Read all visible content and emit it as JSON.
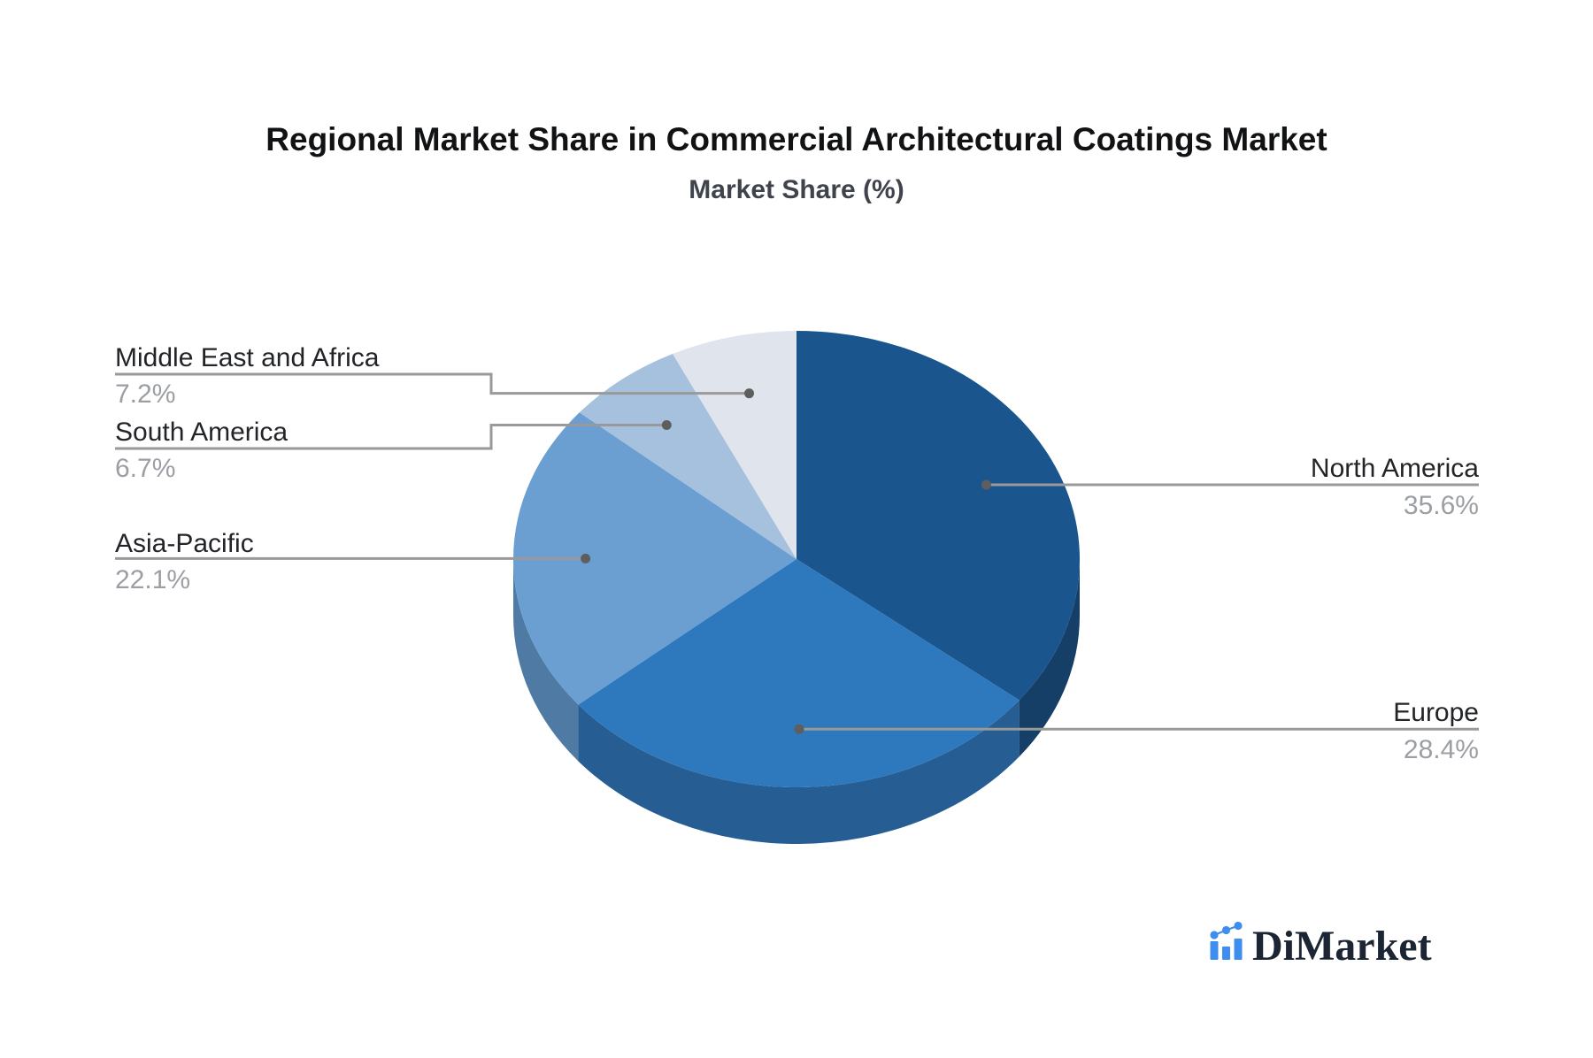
{
  "page": {
    "background": "#FFFFFF"
  },
  "chart_data": {
    "type": "pie",
    "style": "3d",
    "title": "Regional Market Share in Commercial Architectural Coatings Market",
    "subtitle": "Market Share (%)",
    "unit": "%",
    "start_angle": "12-o-clock",
    "direction": "clockwise",
    "legend_position": "callout-labels",
    "slices": [
      {
        "label": "North America",
        "value": 35.6,
        "pct_label": "35.6%",
        "color": "#1A568D",
        "side_color": "#163F68"
      },
      {
        "label": "Europe",
        "value": 28.4,
        "pct_label": "28.4%",
        "color": "#2E79BD",
        "side_color": "#265E93"
      },
      {
        "label": "Asia-Pacific",
        "value": 22.1,
        "pct_label": "22.1%",
        "color": "#6C9FD1",
        "side_color": "#4F7AA4"
      },
      {
        "label": "South America",
        "value": 6.7,
        "pct_label": "6.7%",
        "color": "#A6C1DD",
        "side_color": "#8FA9C4"
      },
      {
        "label": "Middle East and Africa",
        "value": 7.2,
        "pct_label": "7.2%",
        "color": "#DFE4ED",
        "side_color": "#C6CDD9"
      }
    ]
  },
  "branding": {
    "logo_text": "DiMarket",
    "accent": "#3E8EF0",
    "text_color": "#1B2533"
  },
  "colors": {
    "title": "#101214",
    "subtitle": "#3F444C",
    "label_text": "#222427",
    "pct_text": "#9B9EA3",
    "leader_line": "#999999",
    "dot": "#5E5E5E"
  }
}
